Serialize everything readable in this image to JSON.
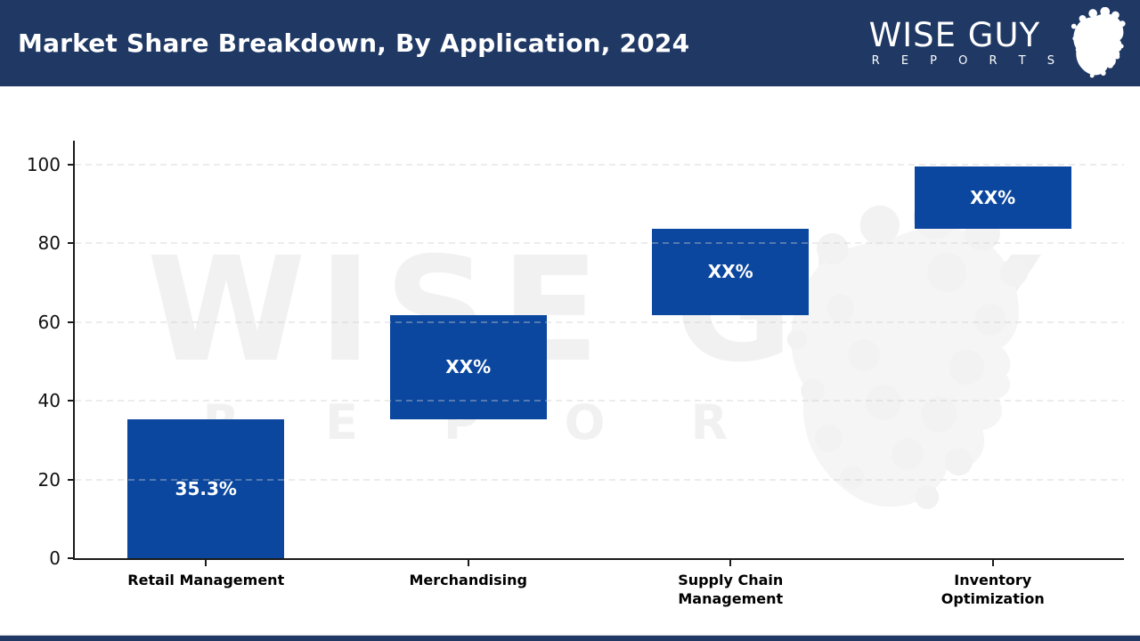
{
  "header": {
    "title": "Market Share Breakdown, By Application, 2024",
    "logo": {
      "name": "WISE GUY",
      "subtitle": "R E P O R T S"
    }
  },
  "watermark": {
    "line1": "WISE GUY",
    "line2": "REPORTS"
  },
  "chart_data": {
    "type": "bar",
    "subtype": "waterfall",
    "title": "Market Share Breakdown, By Application, 2024",
    "categories": [
      "Retail Management",
      "Merchandising",
      "Supply Chain Management",
      "Inventory Optimization"
    ],
    "series": [
      {
        "name": "Market Share (%)",
        "segments": [
          {
            "category": "Retail Management",
            "start": 0,
            "end": 35.3,
            "label": "35.3%"
          },
          {
            "category": "Merchandising",
            "start": 35.3,
            "end": 61.8,
            "label": "XX%"
          },
          {
            "category": "Supply Chain Management",
            "start": 61.8,
            "end": 83.7,
            "label": "XX%"
          },
          {
            "category": "Inventory Optimization",
            "start": 83.7,
            "end": 99.5,
            "label": "XX%"
          }
        ]
      }
    ],
    "xlabel": "",
    "ylabel": "",
    "yticks": [
      0,
      20,
      40,
      60,
      80,
      100
    ],
    "ylim": [
      0,
      106
    ],
    "grid": "horizontal-dashed",
    "legend": "none",
    "bar_color": "#0b479f",
    "bar_label_color": "#ffffff",
    "axis_color": "#1a1a1a",
    "gridline_color": "#d3d3d3"
  },
  "colors": {
    "header_bg": "#1f3864",
    "footer_bg": "#1f3864",
    "page_bg": "#ffffff",
    "watermark": "#f1f1f1"
  }
}
